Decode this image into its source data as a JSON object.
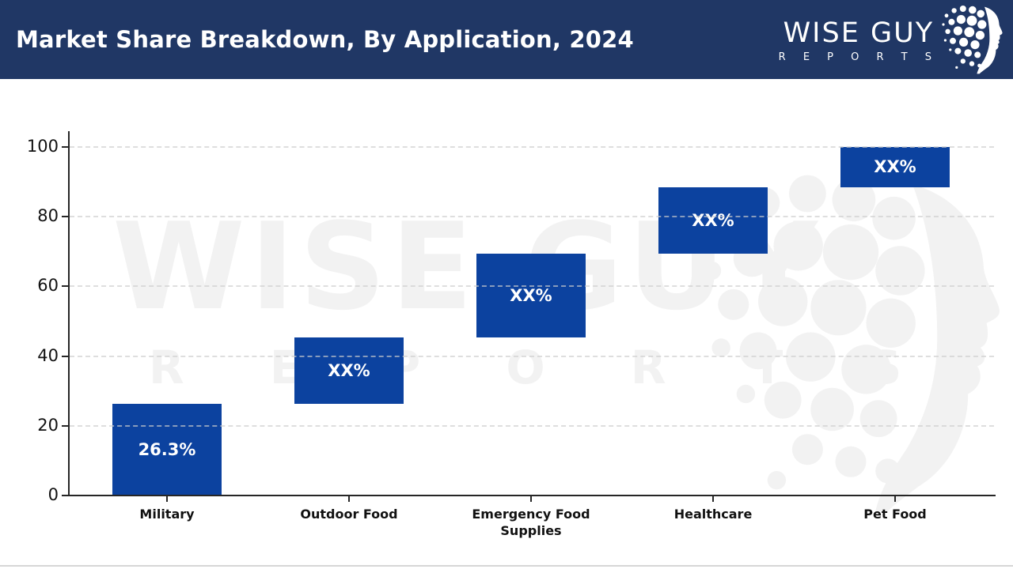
{
  "header": {
    "title": "Market Share Breakdown, By Application, 2024",
    "logo": {
      "name": "WISE GUY",
      "sub": "R E P O R T S"
    },
    "bg_color": "#203765"
  },
  "watermark": {
    "line1": "WISE GUY",
    "line2": "R E P O R T S"
  },
  "chart_data": {
    "type": "bar",
    "subtype": "floating-waterfall",
    "title": "Market Share Breakdown, By Application, 2024",
    "categories": [
      "Military",
      "Outdoor Food",
      "Emergency Food Supplies",
      "Healthcare",
      "Pet Food"
    ],
    "category_label_lines": [
      [
        "Military"
      ],
      [
        "Outdoor Food"
      ],
      [
        "Emergency Food",
        "Supplies"
      ],
      [
        "Healthcare"
      ],
      [
        "Pet Food"
      ]
    ],
    "segments": [
      {
        "category": "Military",
        "start": 0,
        "end": 26.3,
        "label": "26.3%"
      },
      {
        "category": "Outdoor Food",
        "start": 26.3,
        "end": 45.4,
        "label": "XX%"
      },
      {
        "category": "Emergency Food Supplies",
        "start": 45.4,
        "end": 69.4,
        "label": "XX%"
      },
      {
        "category": "Healthcare",
        "start": 69.4,
        "end": 88.5,
        "label": "XX%"
      },
      {
        "category": "Pet Food",
        "start": 88.5,
        "end": 100,
        "label": "XX%"
      }
    ],
    "xlabel": "",
    "ylabel": "",
    "ylim": [
      0,
      100
    ],
    "yticks": [
      0,
      20,
      40,
      60,
      80,
      100
    ],
    "grid": true,
    "legend": null,
    "bar_color": "#0C429F",
    "value_label_color": "#ffffff"
  }
}
